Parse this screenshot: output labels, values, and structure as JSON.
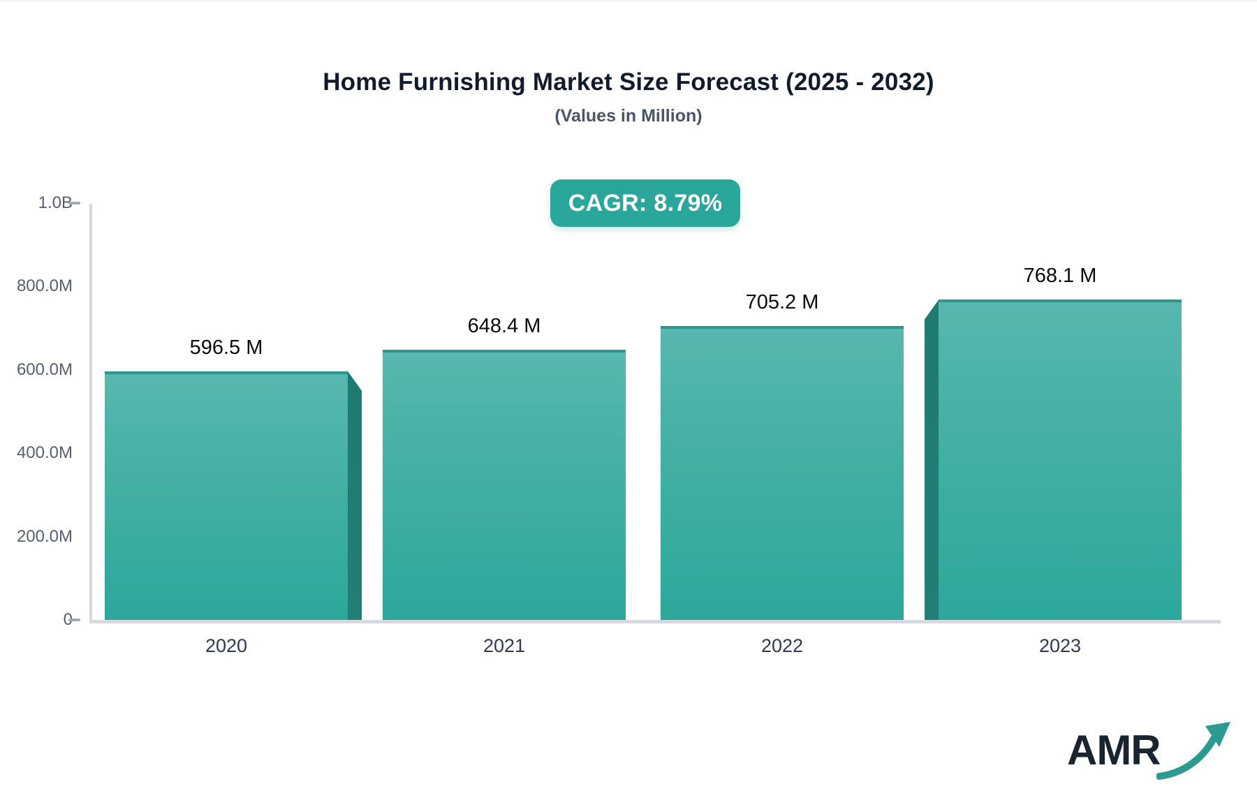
{
  "header": {
    "title": "Home Furnishing Market Size Forecast (2025 - 2032)",
    "subtitle": "(Values in Million)",
    "cagr_badge_label": "CAGR: 8.79%"
  },
  "chart_data": {
    "type": "bar",
    "categories": [
      "2020",
      "2021",
      "2022",
      "2023"
    ],
    "values": [
      596.5,
      648.4,
      705.2,
      768.1
    ],
    "value_labels": [
      "596.5 M",
      "648.4 M",
      "705.2 M",
      "768.1 M"
    ],
    "title": "Home Furnishing Market Size Forecast (2025 - 2032)",
    "subtitle": "(Values in Million)",
    "unit": "Million",
    "cagr_percent": "8.79%",
    "xlabel": "",
    "ylabel": "",
    "ylim": [
      0,
      1000
    ],
    "y_ticks": [
      {
        "label": "1.0B",
        "value": 1000,
        "dash": true
      },
      {
        "label": "800.0M",
        "value": 800,
        "dash": false
      },
      {
        "label": "600.0M",
        "value": 600,
        "dash": false
      },
      {
        "label": "400.0M",
        "value": 400,
        "dash": false
      },
      {
        "label": "200.0M",
        "value": 200,
        "dash": false
      },
      {
        "label": "0",
        "value": 0,
        "dash": true
      }
    ],
    "grid": false,
    "legend": "none",
    "colors": {
      "bar_top": "#58b7ae",
      "bar_bottom": "#2ba89a",
      "bar_side": "#1f7b71",
      "badge_bg": "#2aa69b",
      "axis_line": "#d5d8df"
    }
  },
  "logo": {
    "text": "AMR"
  }
}
